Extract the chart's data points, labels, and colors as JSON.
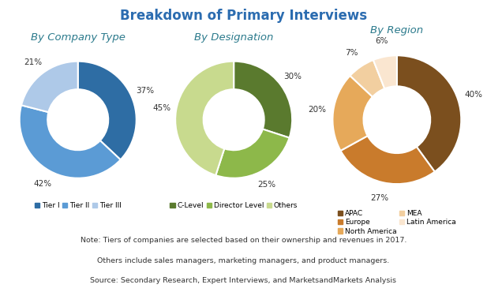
{
  "title": "Breakdown of Primary Interviews",
  "title_color": "#2b6cb0",
  "background_color": "#ffffff",
  "charts": [
    {
      "subtitle": "By Company Type",
      "values": [
        37,
        42,
        21
      ],
      "labels": [
        "37%",
        "42%",
        "21%"
      ],
      "legend_labels": [
        "Tier I",
        "Tier II",
        "Tier III"
      ],
      "colors": [
        "#2e6da4",
        "#5b9bd5",
        "#aec9e8"
      ],
      "startangle": 90,
      "counterclock": false,
      "legend_ncol": 3,
      "legend_cols": 1
    },
    {
      "subtitle": "By Designation",
      "values": [
        30,
        25,
        45
      ],
      "labels": [
        "30%",
        "25%",
        "45%"
      ],
      "legend_labels": [
        "C-Level",
        "Director Level",
        "Others"
      ],
      "colors": [
        "#5a7a2e",
        "#8db84a",
        "#c8da8e"
      ],
      "startangle": 90,
      "counterclock": false,
      "legend_ncol": 3,
      "legend_cols": 1
    },
    {
      "subtitle": "By Region",
      "values": [
        40,
        27,
        20,
        7,
        6
      ],
      "labels": [
        "40%",
        "27%",
        "20%",
        "7%",
        "6%"
      ],
      "legend_labels": [
        "APAC",
        "Europe",
        "North America",
        "MEA",
        "Latin America"
      ],
      "colors": [
        "#7b4f1e",
        "#c97b2c",
        "#e6a95a",
        "#f2cfa0",
        "#fae6d0"
      ],
      "startangle": 90,
      "counterclock": false,
      "legend_ncol": 2,
      "legend_cols": 2
    }
  ],
  "note_lines": [
    "Note: Tiers of companies are selected based on their ownership and revenues in 2017.",
    "Others include sales managers, marketing managers, and product managers.",
    "Source: Secondary Research, Expert Interviews, and MarketsandMarkets Analysis"
  ],
  "subtitle_color": "#2b7a8c",
  "label_fontsize": 7.5,
  "subtitle_fontsize": 9.5,
  "note_fontsize": 6.8,
  "legend_fontsize": 6.5
}
